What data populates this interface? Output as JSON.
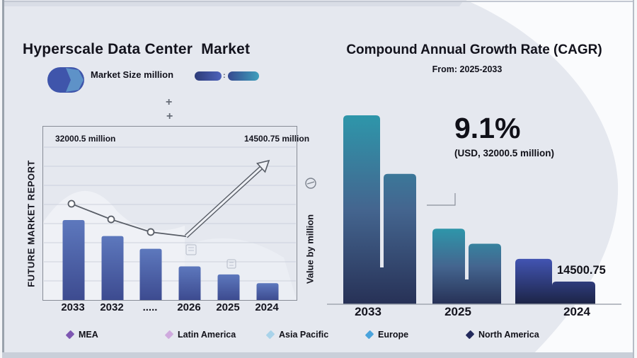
{
  "header_left": {
    "title": "Hyperscale Data Center  Market",
    "subtitle": "Market Size million"
  },
  "header_right": {
    "title": "Compound Annual Growth Rate (CAGR)",
    "subtitle": "From: 2025-2033"
  },
  "cagr": {
    "value": "9.1%",
    "detail": "(USD, 32000.5 million)"
  },
  "decorations": {
    "plus_top": "+",
    "plus_bottom": "+",
    "pill_separator": ":"
  },
  "colors": {
    "page_bg": "#e5e8ef",
    "left_bar_top": "#5d78bd",
    "left_bar_bottom": "#3d4b90",
    "teal_top": "#2e96aa",
    "teal_mid": "#44658f",
    "navy_bottom": "#273156",
    "blue_top": "#4254b2",
    "blue_bottom": "#1c2446",
    "line_stroke": "#585d66",
    "grid": "#ccd1dc"
  },
  "chart_data": [
    {
      "id": "market-size-by-year",
      "type": "bar",
      "title": "Market Size million",
      "categories": [
        "2033",
        "2032",
        ".....",
        "2026",
        "2025",
        "2024"
      ],
      "values_rel": [
        1.0,
        0.8,
        0.64,
        0.42,
        0.32,
        0.21
      ],
      "labeled_values": {
        "max": "32000.5 million",
        "start": "14500.75 million"
      },
      "annotation_left": "32000.5 million",
      "annotation_right": "14500.75 million",
      "trend_line_rel": [
        0.555,
        0.465,
        0.392,
        0.367
      ],
      "trend_arrow": "up-right",
      "ylabel_right": "Value by million",
      "side_label": "FUTURE MARKET REPORT",
      "grid": "on",
      "legend_position": "bottom"
    },
    {
      "id": "cagr-by-year",
      "type": "grouped-bar",
      "categories": [
        "2033",
        "2025",
        "2024"
      ],
      "series_rel": [
        [
          1.0,
          0.69
        ],
        [
          0.4,
          0.32
        ],
        [
          0.24,
          0.12
        ]
      ],
      "annotation": "14500.75",
      "period": "2025-2033",
      "cagr_percent": 9.1,
      "base_value_usd_million": 32000.5,
      "start_value_usd_million": 14500.75
    }
  ],
  "legend": {
    "items": [
      {
        "label": "MEA",
        "color": "#7e57b2"
      },
      {
        "label": "Latin America",
        "color": "#cfaade"
      },
      {
        "label": "Asia Pacific",
        "color": "#a9d3ea"
      },
      {
        "label": "Europe",
        "color": "#4aa3dc"
      },
      {
        "label": "North America",
        "color": "#232a5c"
      }
    ]
  }
}
